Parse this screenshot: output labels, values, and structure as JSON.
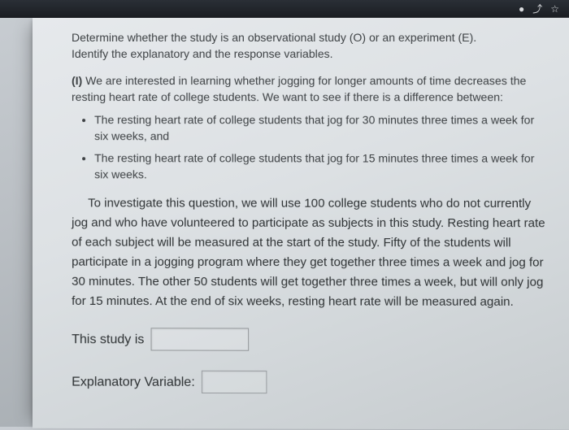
{
  "browser": {
    "share_icon": "⤴",
    "star_icon": "☆",
    "dot_icon": "●"
  },
  "question": {
    "intro_line1": "Determine whether the study is an observational study (O) or an experiment (E).",
    "intro_line2": "Identify the explanatory and the response variables.",
    "part_label": "(I)",
    "part_text": "We are interested in learning whether jogging for longer amounts of time decreases the resting heart rate of college students. We want to see if there is a difference between:",
    "bullets": [
      "The resting heart rate of college students that jog for 30 minutes three times a week for six weeks, and",
      "The resting heart rate of college students that jog for 15 minutes three times a week for six weeks."
    ],
    "body": "To investigate this question, we will use 100 college students who do not currently jog and who have volunteered to participate as subjects in this study. Resting heart rate of each subject will be measured at the start of the study. Fifty of the students will participate in a jogging program where they get together three times a week and jog for 30 minutes. The other 50 students will get together three times a week, but will only jog for 15 minutes. At the end of six weeks, resting heart rate will be measured again.",
    "answers": {
      "label_study": "This study is",
      "label_explanatory": "Explanatory Variable:"
    }
  }
}
